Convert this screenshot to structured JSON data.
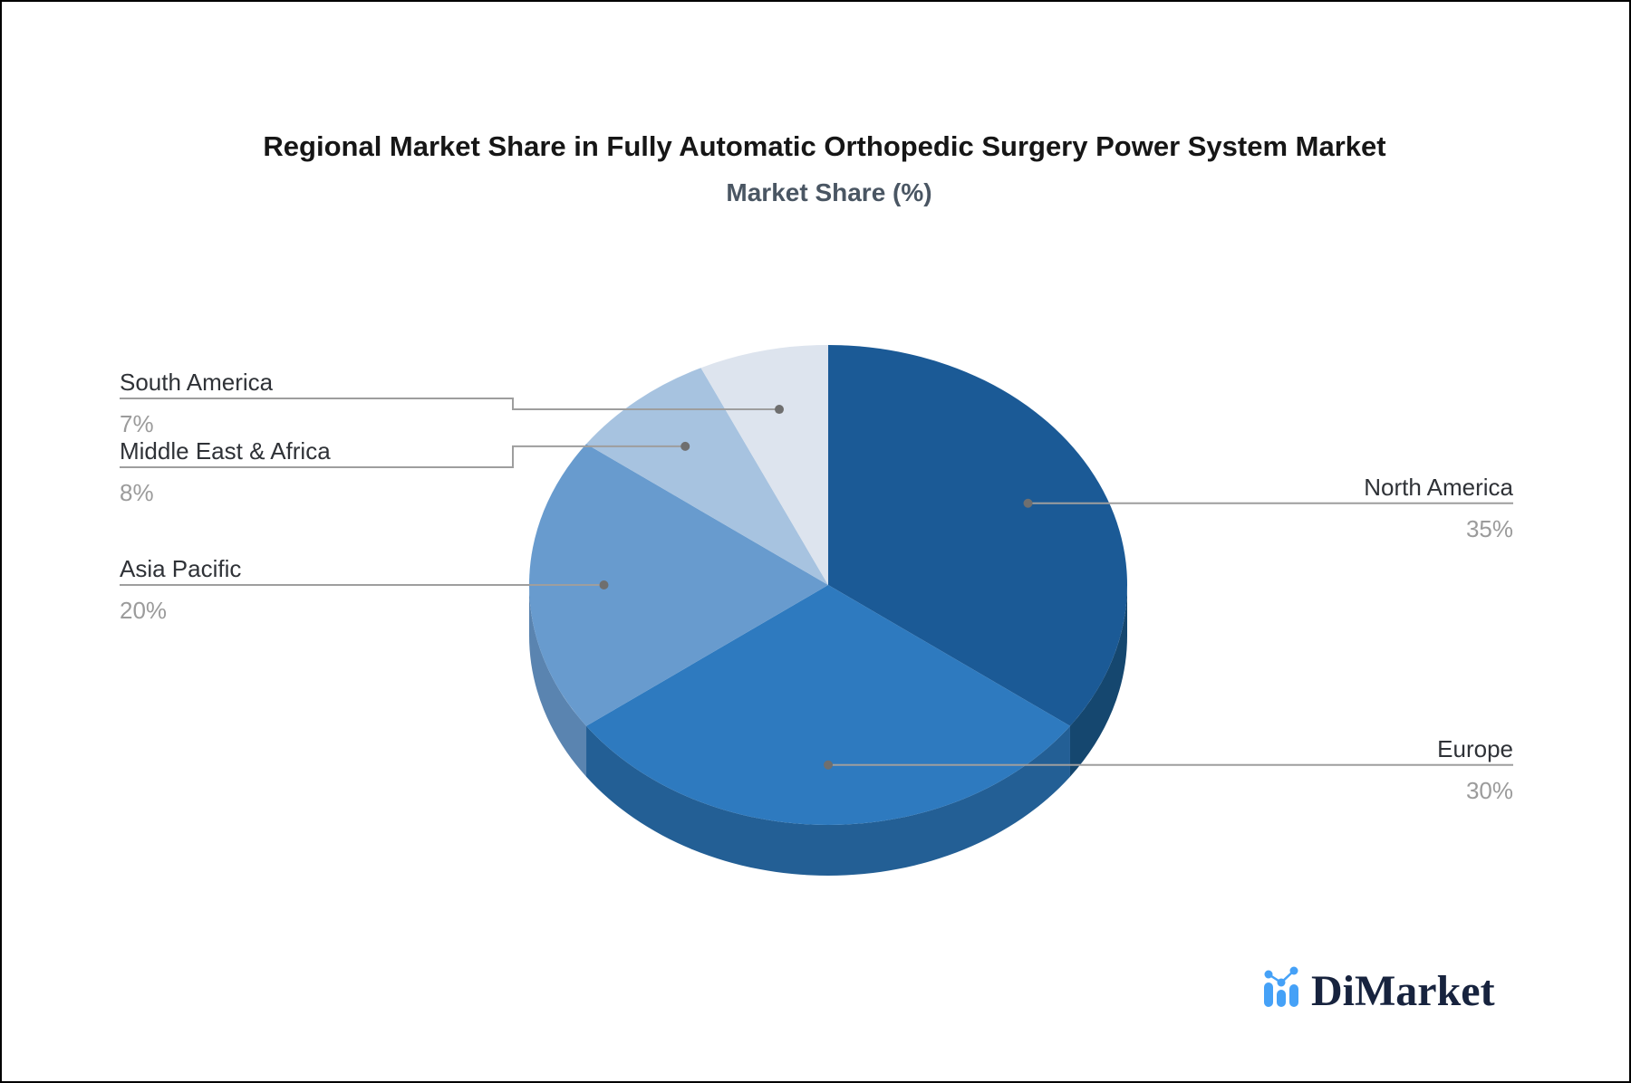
{
  "title": "Regional Market Share in Fully Automatic Orthopedic Surgery Power System Market",
  "subtitle": "Market Share (%)",
  "chart_data": {
    "type": "pie",
    "style": "3d",
    "direction": "clockwise",
    "start_angle_deg": 0,
    "unit": "%",
    "categories": [
      "North America",
      "Europe",
      "Asia Pacific",
      "Middle East & Africa",
      "South America"
    ],
    "values": [
      35,
      30,
      20,
      8,
      7
    ],
    "slices": [
      {
        "label": "North America",
        "value": 35,
        "display": "35%",
        "color": "#1b5a96",
        "side_color": "#15476f",
        "label_side": "right"
      },
      {
        "label": "Europe",
        "value": 30,
        "display": "30%",
        "color": "#2e7abf",
        "side_color": "#235f95",
        "label_side": "right"
      },
      {
        "label": "Asia Pacific",
        "value": 20,
        "display": "20%",
        "color": "#689bce",
        "side_color": "#5a84b0",
        "label_side": "left"
      },
      {
        "label": "Middle East & Africa",
        "value": 8,
        "display": "8%",
        "color": "#a7c3e0",
        "side_color": "#8aa3bd",
        "label_side": "left"
      },
      {
        "label": "South America",
        "value": 7,
        "display": "7%",
        "color": "#dde4ee",
        "side_color": "#b8c0cc",
        "label_side": "left"
      }
    ],
    "colors": {
      "leader_line": "#9e9e9e",
      "leader_dot": "#6f6f6f",
      "label_text": "#2f3237",
      "value_text": "#9b9b9b",
      "page_border": "#000000"
    }
  },
  "logo": {
    "text": "DiMarket",
    "icon": "bar-chart-trend-icon",
    "icon_color": "#45a1f7",
    "text_color": "#17233e"
  }
}
